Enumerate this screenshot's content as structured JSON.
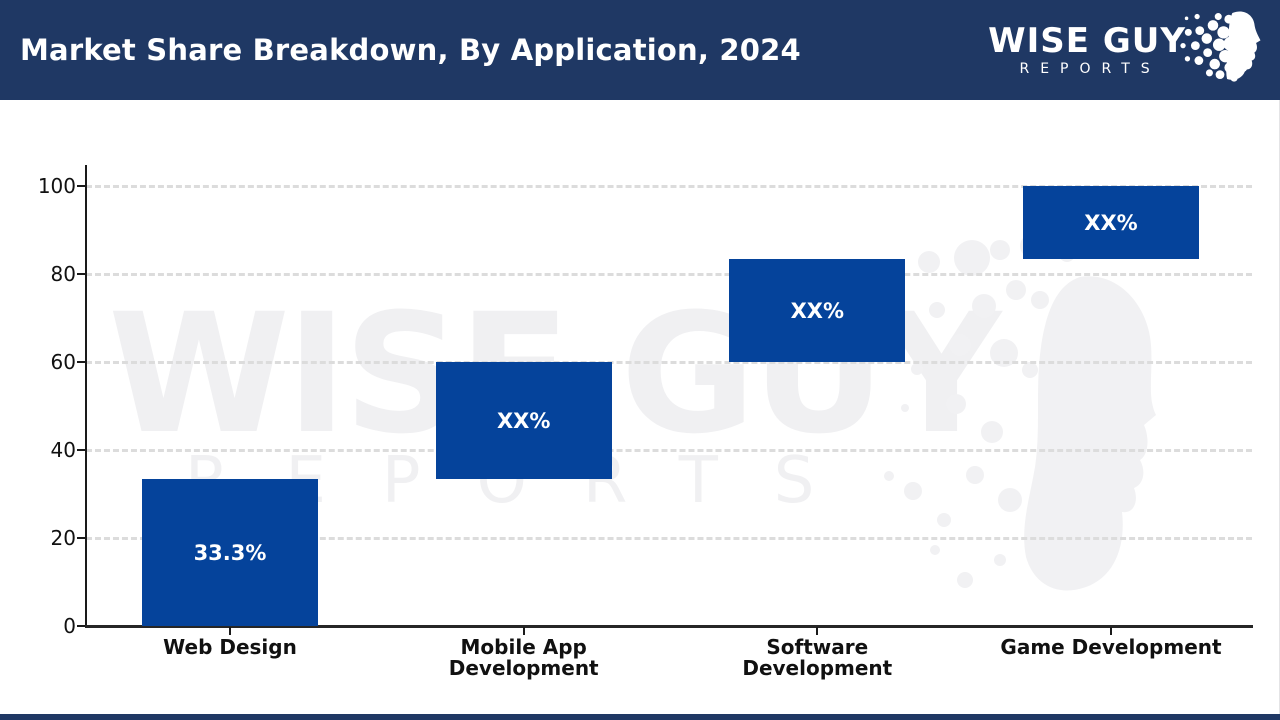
{
  "header": {
    "title": "Market Share Breakdown, By Application, 2024",
    "logo": {
      "primary": "WISE GUY",
      "secondary": "REPORTS"
    }
  },
  "watermark": {
    "primary": "WISE GUY",
    "secondary": "REPORTS"
  },
  "chart_data": {
    "type": "bar",
    "subtype": "floating-segment-waterfall",
    "title": "Market Share Breakdown, By Application, 2024",
    "unit": "%",
    "categories": [
      "Web Design",
      "Mobile App\nDevelopment",
      "Software\nDevelopment",
      "Game Development"
    ],
    "bars": [
      {
        "category": "Web Design",
        "from": 0,
        "to": 33.3,
        "value": 33.3,
        "label": "33.3%"
      },
      {
        "category": "Mobile App\nDevelopment",
        "from": 33.3,
        "to": 60,
        "value": 26.7,
        "label": "XX%"
      },
      {
        "category": "Software\nDevelopment",
        "from": 60,
        "to": 83.3,
        "value": 23.3,
        "label": "XX%"
      },
      {
        "category": "Game Development",
        "from": 83.3,
        "to": 100,
        "value": 16.7,
        "label": "XX%"
      }
    ],
    "ylim": [
      0,
      100
    ],
    "yticks": [
      0,
      20,
      40,
      60,
      80,
      100
    ],
    "xlabel": "",
    "ylabel": "",
    "grid": "horizontal-dashed",
    "legend": "none",
    "colors": {
      "bar": "#05439B",
      "bar_label": "#FFFFFF",
      "axis": "#1A1A1A",
      "gridline": "#DCDCDC",
      "header_bg": "#1F3864",
      "header_text": "#FFFFFF",
      "watermark": "#F0F0F2"
    }
  }
}
